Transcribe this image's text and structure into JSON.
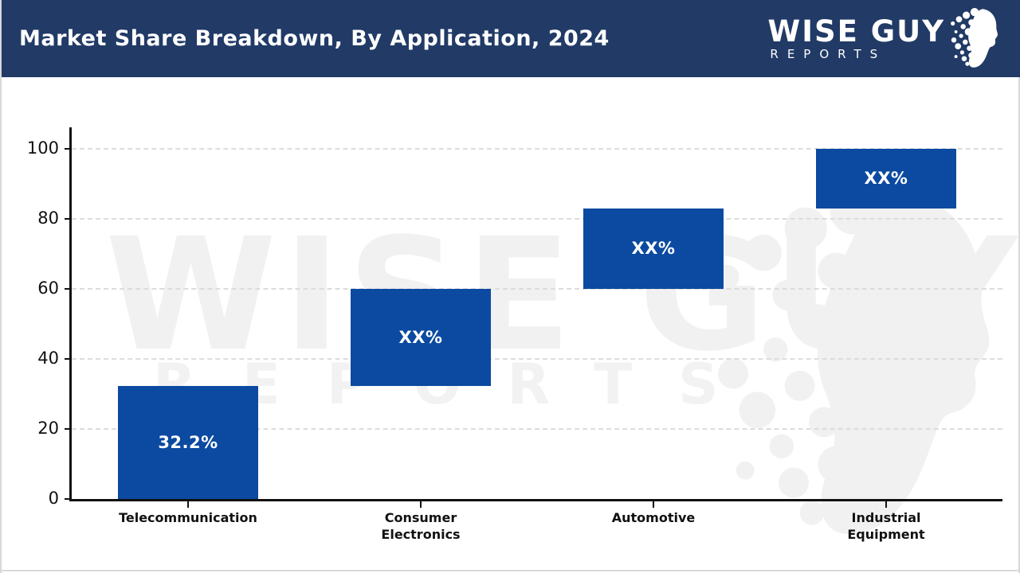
{
  "header": {
    "title": "Market Share Breakdown, By Application, 2024",
    "bg_color": "#213A66",
    "logo": {
      "line1": "WISE GUY",
      "line2": "REPORTS"
    }
  },
  "watermark": {
    "line1": "WISE GUY",
    "line2": "REPORTS"
  },
  "chart_data": {
    "type": "bar",
    "subtype": "waterfall",
    "title": "Market Share Breakdown, By Application, 2024",
    "categories": [
      "Telecommunication",
      "Consumer\nElectronics",
      "Automotive",
      "Industrial\nEquipment"
    ],
    "series": [
      {
        "name": "Market Share",
        "segments": [
          {
            "category": "Telecommunication",
            "start": 0,
            "end": 32.2,
            "label": "32.2%"
          },
          {
            "category": "Consumer Electronics",
            "start": 32.2,
            "end": 60,
            "label": "XX%"
          },
          {
            "category": "Automotive",
            "start": 60,
            "end": 83,
            "label": "XX%"
          },
          {
            "category": "Industrial Equipment",
            "start": 83,
            "end": 100,
            "label": "XX%"
          }
        ]
      }
    ],
    "yticks": [
      0,
      20,
      40,
      60,
      80,
      100
    ],
    "ylim": [
      0,
      105
    ],
    "xlabel": "",
    "ylabel": "",
    "grid": "horizontal-dashed",
    "legend": "none",
    "bar_color": "#0B4AA0",
    "bar_label_color": "#ffffff",
    "axis_color": "#111111",
    "gridline_color": "#dcdcdc"
  }
}
